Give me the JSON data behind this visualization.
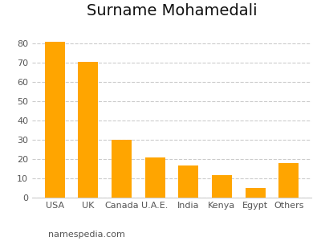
{
  "title": "Surname Mohamedali",
  "categories": [
    "USA",
    "UK",
    "Canada",
    "U.A.E.",
    "India",
    "Kenya",
    "Egypt",
    "Others"
  ],
  "values": [
    81,
    70.5,
    30,
    21,
    16.5,
    11.5,
    5,
    18
  ],
  "bar_color": "#FFA500",
  "ylim": [
    0,
    90
  ],
  "yticks": [
    0,
    10,
    20,
    30,
    40,
    50,
    60,
    70,
    80
  ],
  "grid_color": "#cccccc",
  "bg_color": "#ffffff",
  "title_fontsize": 14,
  "tick_fontsize": 8,
  "watermark": "namespedia.com",
  "watermark_fontsize": 8
}
